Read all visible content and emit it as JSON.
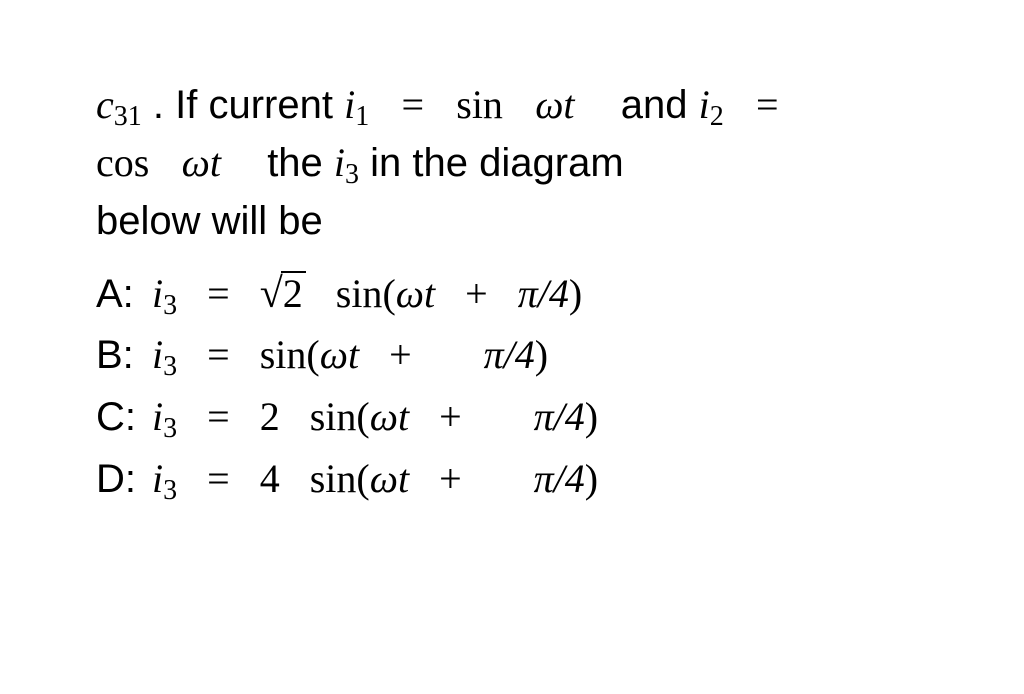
{
  "question": {
    "prefix_sym": "c",
    "prefix_sub": "31",
    "text1": ". If current ",
    "i1_sym": "i",
    "i1_sub": "1",
    "eq": "=",
    "sin": "sin",
    "cos": "cos",
    "omega_t": "ωt",
    "text_and": " and ",
    "i2_sym": "i",
    "i2_sub": "2",
    "text_the": " the ",
    "i3_sym": "i",
    "i3_sub": "3",
    "text_rest": " in the diagram below will be"
  },
  "options": {
    "A": {
      "label": "A:",
      "lhs_sym": "i",
      "lhs_sub": "3",
      "eq": "=",
      "coef_radicand": "2",
      "fn": "sin",
      "open": "(",
      "arg1": "ωt",
      "plus": "+",
      "arg2": "π/4",
      "close": ")"
    },
    "B": {
      "label": "B:",
      "lhs_sym": "i",
      "lhs_sub": "3",
      "eq": "=",
      "fn": "sin",
      "open": "(",
      "arg1": "ωt",
      "plus": "+",
      "arg2": "π/4",
      "close": ")"
    },
    "C": {
      "label": "C:",
      "lhs_sym": "i",
      "lhs_sub": "3",
      "eq": "=",
      "coef": "2",
      "fn": "sin",
      "open": "(",
      "arg1": "ωt",
      "plus": "+",
      "arg2": "π/4",
      "close": ")"
    },
    "D": {
      "label": "D:",
      "lhs_sym": "i",
      "lhs_sub": "3",
      "eq": "=",
      "coef": "4",
      "fn": "sin",
      "open": "(",
      "arg1": "ωt",
      "plus": "+",
      "arg2": "π/4",
      "close": ")"
    }
  }
}
